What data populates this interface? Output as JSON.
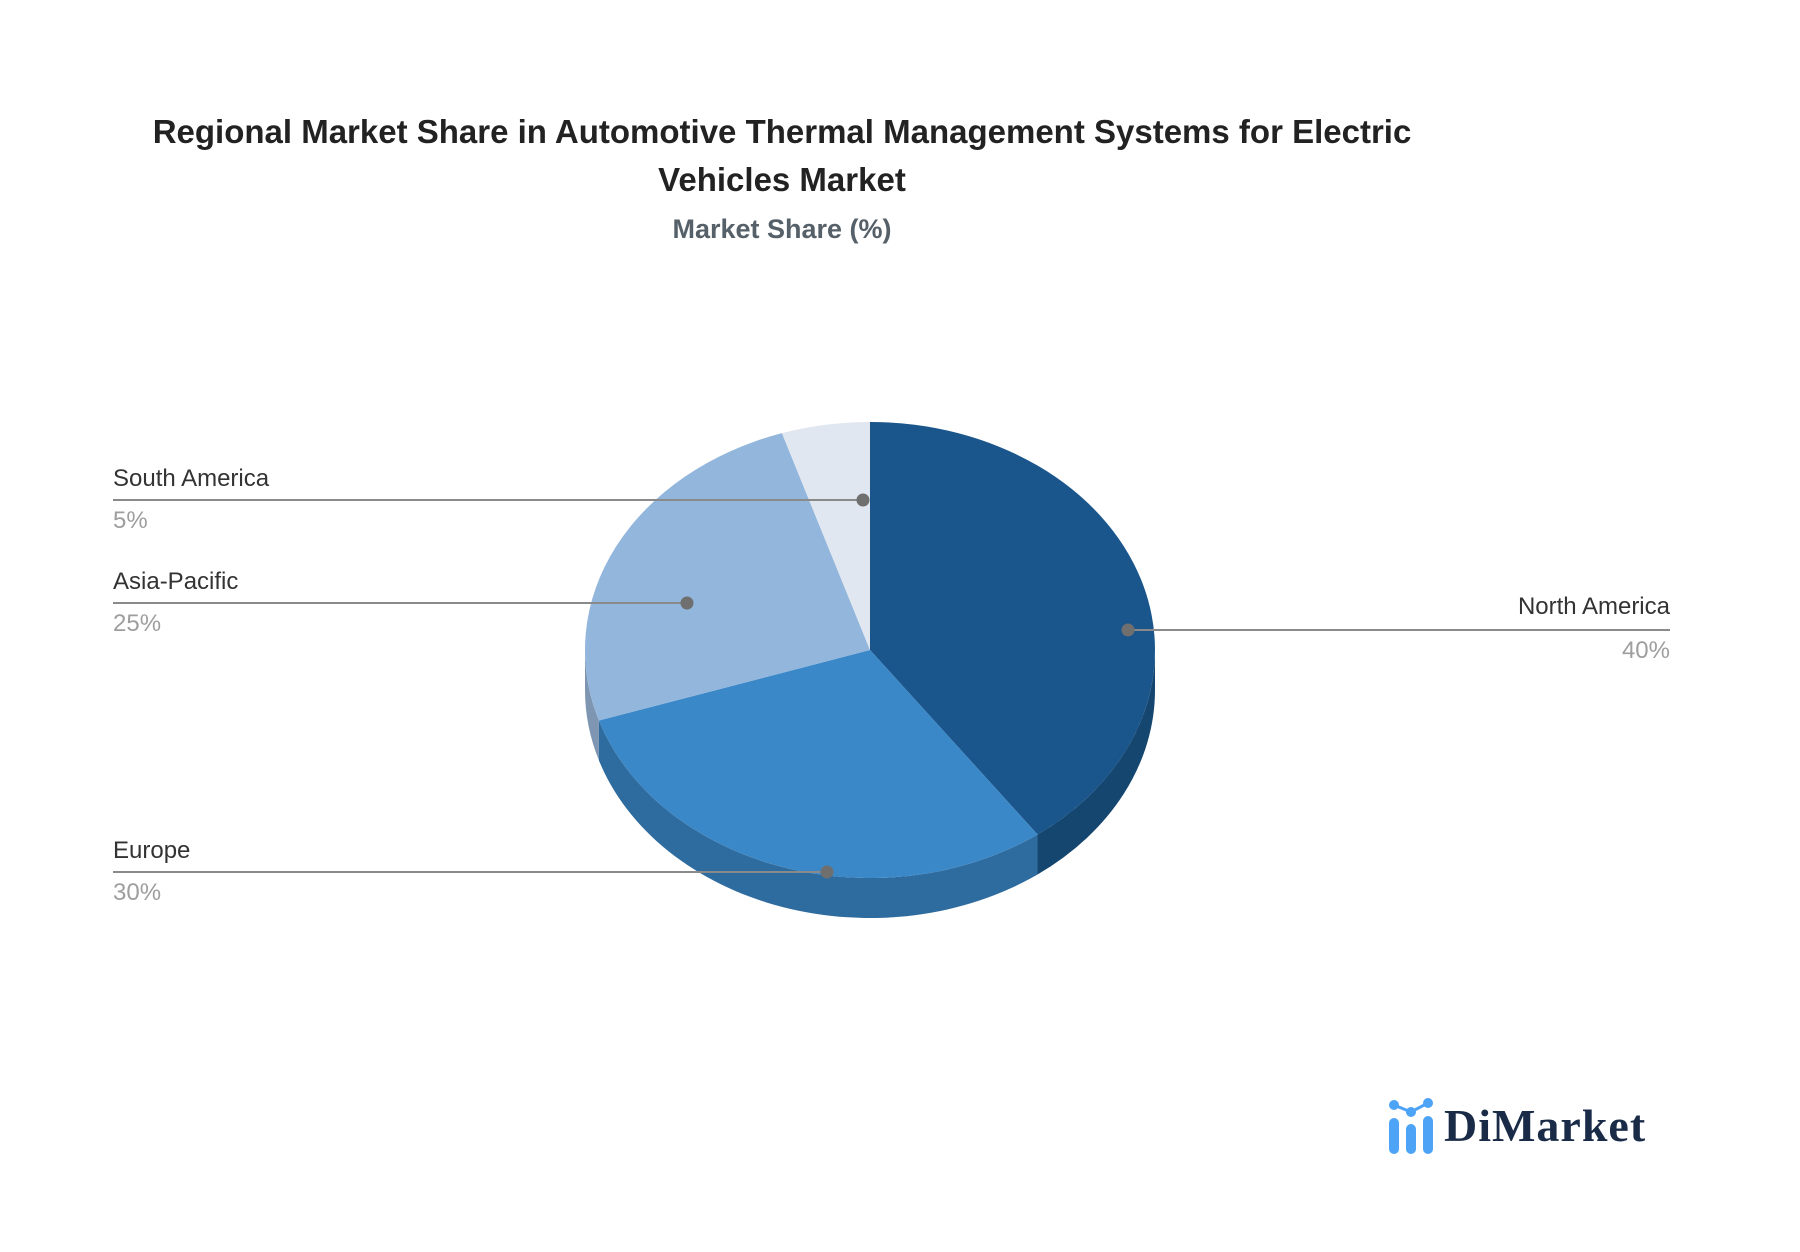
{
  "chart_data": {
    "type": "pie",
    "style": "3d",
    "title": "Regional Market Share in Automotive Thermal Management Systems for Electric Vehicles Market",
    "title_lines": [
      "Regional Market Share in Automotive Thermal Management Systems for Electric",
      "Vehicles Market"
    ],
    "subtitle": "Market Share (%)",
    "unit": "%",
    "start_angle": "12-o-clock",
    "direction": "clockwise",
    "legend": "none",
    "data_labels": "callout leader lines with region name above line and percent below",
    "slices": [
      {
        "name": "North America",
        "value": 40,
        "display": "40%",
        "color": "#1A568C",
        "side_color": "#15466F"
      },
      {
        "name": "Europe",
        "value": 30,
        "display": "30%",
        "color": "#3B88C8",
        "side_color": "#2E6B9E"
      },
      {
        "name": "Asia-Pacific",
        "value": 25,
        "display": "25%",
        "color": "#93B6DC",
        "side_color": "#7E96B2"
      },
      {
        "name": "South America",
        "value": 5,
        "display": "5%",
        "color": "#E1E7F1",
        "side_color": "#C5CEDD"
      }
    ],
    "leader_line_color": "#8A8A8A",
    "leader_dot_color": "#6F6F6F",
    "label_color": "#333333",
    "value_color": "#9E9E9E"
  },
  "branding": {
    "logo_text": "DiMarket",
    "logo_icon": "bar-chart-with-trend-icon",
    "logo_icon_color": "#4DA3F5",
    "logo_text_color": "#1A2B47"
  }
}
